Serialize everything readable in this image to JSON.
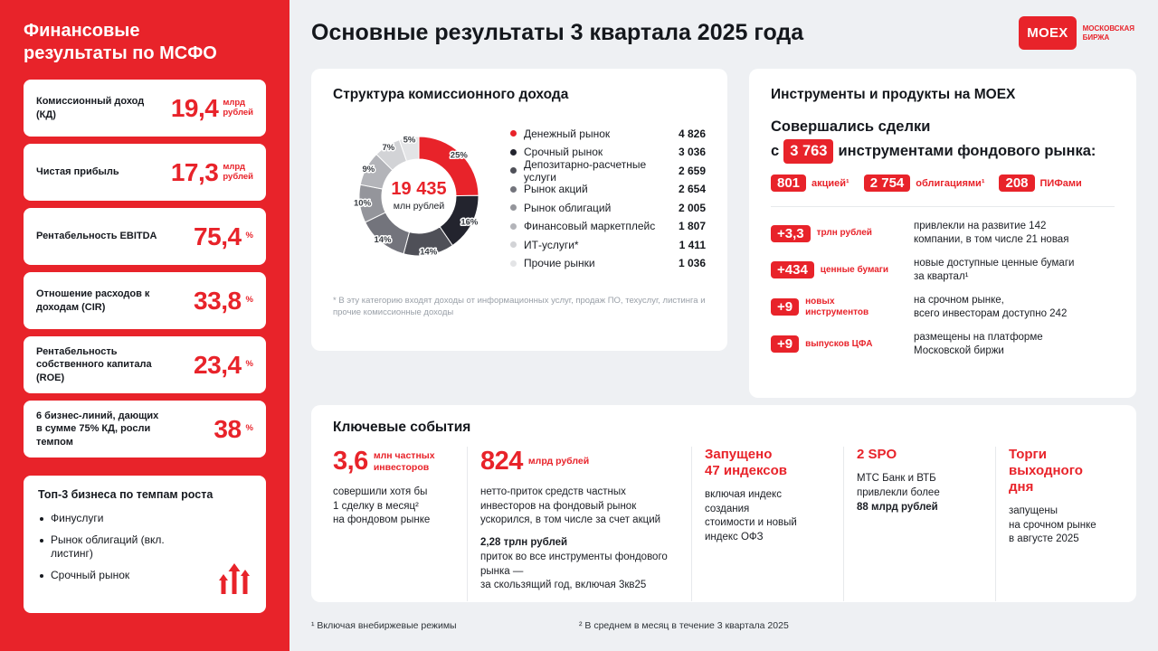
{
  "brand": {
    "red": "#e8232a",
    "logo_text": "MOEX",
    "logo_caption": "МОСКОВСКАЯ\nБИРЖА"
  },
  "sidebar": {
    "title": "Финансовые\nрезультаты по МСФО",
    "metrics": [
      {
        "label": "Комиссионный доход (КД)",
        "value": "19,4",
        "unit_lines": [
          "млрд",
          "рублей"
        ]
      },
      {
        "label": "Чистая прибыль",
        "value": "17,3",
        "unit_lines": [
          "млрд",
          "рублей"
        ]
      },
      {
        "label": "Рентабельность EBITDA",
        "value": "75,4",
        "unit_lines": [
          "%"
        ]
      },
      {
        "label": "Отношение расходов к доходам (CIR)",
        "value": "33,8",
        "unit_lines": [
          "%"
        ]
      },
      {
        "label": "Рентабельность собственного капитала (ROE)",
        "value": "23,4",
        "unit_lines": [
          "%"
        ]
      },
      {
        "label": "6 бизнес-линий, дающих в сумме 75% КД, росли темпом",
        "value": "38",
        "unit_lines": [
          "%"
        ]
      }
    ],
    "top3": {
      "title": "Топ-3 бизнеса по темпам роста",
      "items": [
        "Финуслуги",
        "Рынок облигаций (вкл. листинг)",
        "Срочный рынок"
      ]
    }
  },
  "header": {
    "title": "Основные результаты 3 квартала 2025 года"
  },
  "chart_data": {
    "type": "pie",
    "title": "Структура комиссионного дохода",
    "center_value": "19 435",
    "center_unit": "млн рублей",
    "categories": [
      "Денежный рынок",
      "Срочный рынок",
      "Депозитарно-расчетные услуги",
      "Рынок акций",
      "Рынок облигаций",
      "Финансовый маркетплейс",
      "ИТ-услуги*",
      "Прочие рынки"
    ],
    "values": [
      4826,
      3036,
      2659,
      2654,
      2005,
      1807,
      1411,
      1036
    ],
    "display_values": [
      "4 826",
      "3 036",
      "2 659",
      "2 654",
      "2 005",
      "1 807",
      "1 411",
      "1 036"
    ],
    "percent_labels": [
      "25%",
      "16%",
      "14%",
      "14%",
      "10%",
      "9%",
      "7%",
      "5%"
    ],
    "colors": [
      "#e8232a",
      "#23242e",
      "#4f5058",
      "#73747c",
      "#94959b",
      "#b3b4b9",
      "#d2d3d6",
      "#e3e4e6"
    ],
    "legend_position": "right",
    "footnote": "* В эту категорию входят доходы от информационных услуг, продаж ПО, техуслуг, листинга и прочие комиссионные доходы"
  },
  "instruments": {
    "title": "Инструменты и продукты на MOEX",
    "subtitle_line1": "Совершались сделки",
    "subtitle_line2_prefix": "с",
    "total_chip": "3 763",
    "subtitle_line2_suffix": "инструментами фондового рынка:",
    "chips": [
      {
        "value": "801",
        "label": "акцией¹"
      },
      {
        "value": "2 754",
        "label": "облигациями¹"
      },
      {
        "value": "208",
        "label": "ПИФами"
      }
    ],
    "rows": [
      {
        "chip": "+3,3",
        "unit": "трлн рублей",
        "desc": "привлекли на развитие 142\nкомпании, в том числе 21 новая"
      },
      {
        "chip": "+434",
        "unit": "ценные бумаги",
        "desc": "новые доступные ценные бумаги\nза квартал¹"
      },
      {
        "chip": "+9",
        "unit": "новых инструментов",
        "desc": "на срочном рынке,\nвсего инвесторам доступно 242"
      },
      {
        "chip": "+9",
        "unit": "выпусков ЦФА",
        "desc": "размещены на платформе\nМосковской биржи"
      }
    ]
  },
  "events": {
    "title": "Ключевые события",
    "columns": [
      {
        "big": "3,6",
        "big_unit": "млн частных инвесторов",
        "paragraphs": [
          {
            "text": "совершили хотя бы\n1 сделку в месяц²\nна фондовом рынке"
          }
        ]
      },
      {
        "big": "824",
        "big_unit": "млрд рублей",
        "paragraphs": [
          {
            "text": "нетто-приток средств частных инвесторов на фондовый рынок ускорился, в том числе за счет акций"
          },
          {
            "text": "2,28 трлн рублей",
            "bold": true
          },
          {
            "text": "приток во все инструменты фондового рынка —\nза скользящий год, включая 3кв25"
          }
        ]
      },
      {
        "heading": "Запущено\n47 индексов",
        "paragraphs": [
          {
            "text": "включая индекс\nсоздания\nстоимости и новый\nиндекс ОФЗ"
          }
        ]
      },
      {
        "heading": "2 SPO",
        "paragraphs": [
          {
            "text": "МТС Банк и ВТБ\nпривлекли более",
            "tight": true
          },
          {
            "text": "88 млрд рублей",
            "bold": true
          }
        ]
      },
      {
        "heading": "Торги\nвыходного\nдня",
        "paragraphs": [
          {
            "text": "запущены\nна срочном рынке\nв августе 2025"
          }
        ]
      }
    ]
  },
  "footnotes": {
    "note1": "¹ Включая внебиржевые режимы",
    "note2": "² В среднем в месяц в течение 3 квартала 2025"
  }
}
